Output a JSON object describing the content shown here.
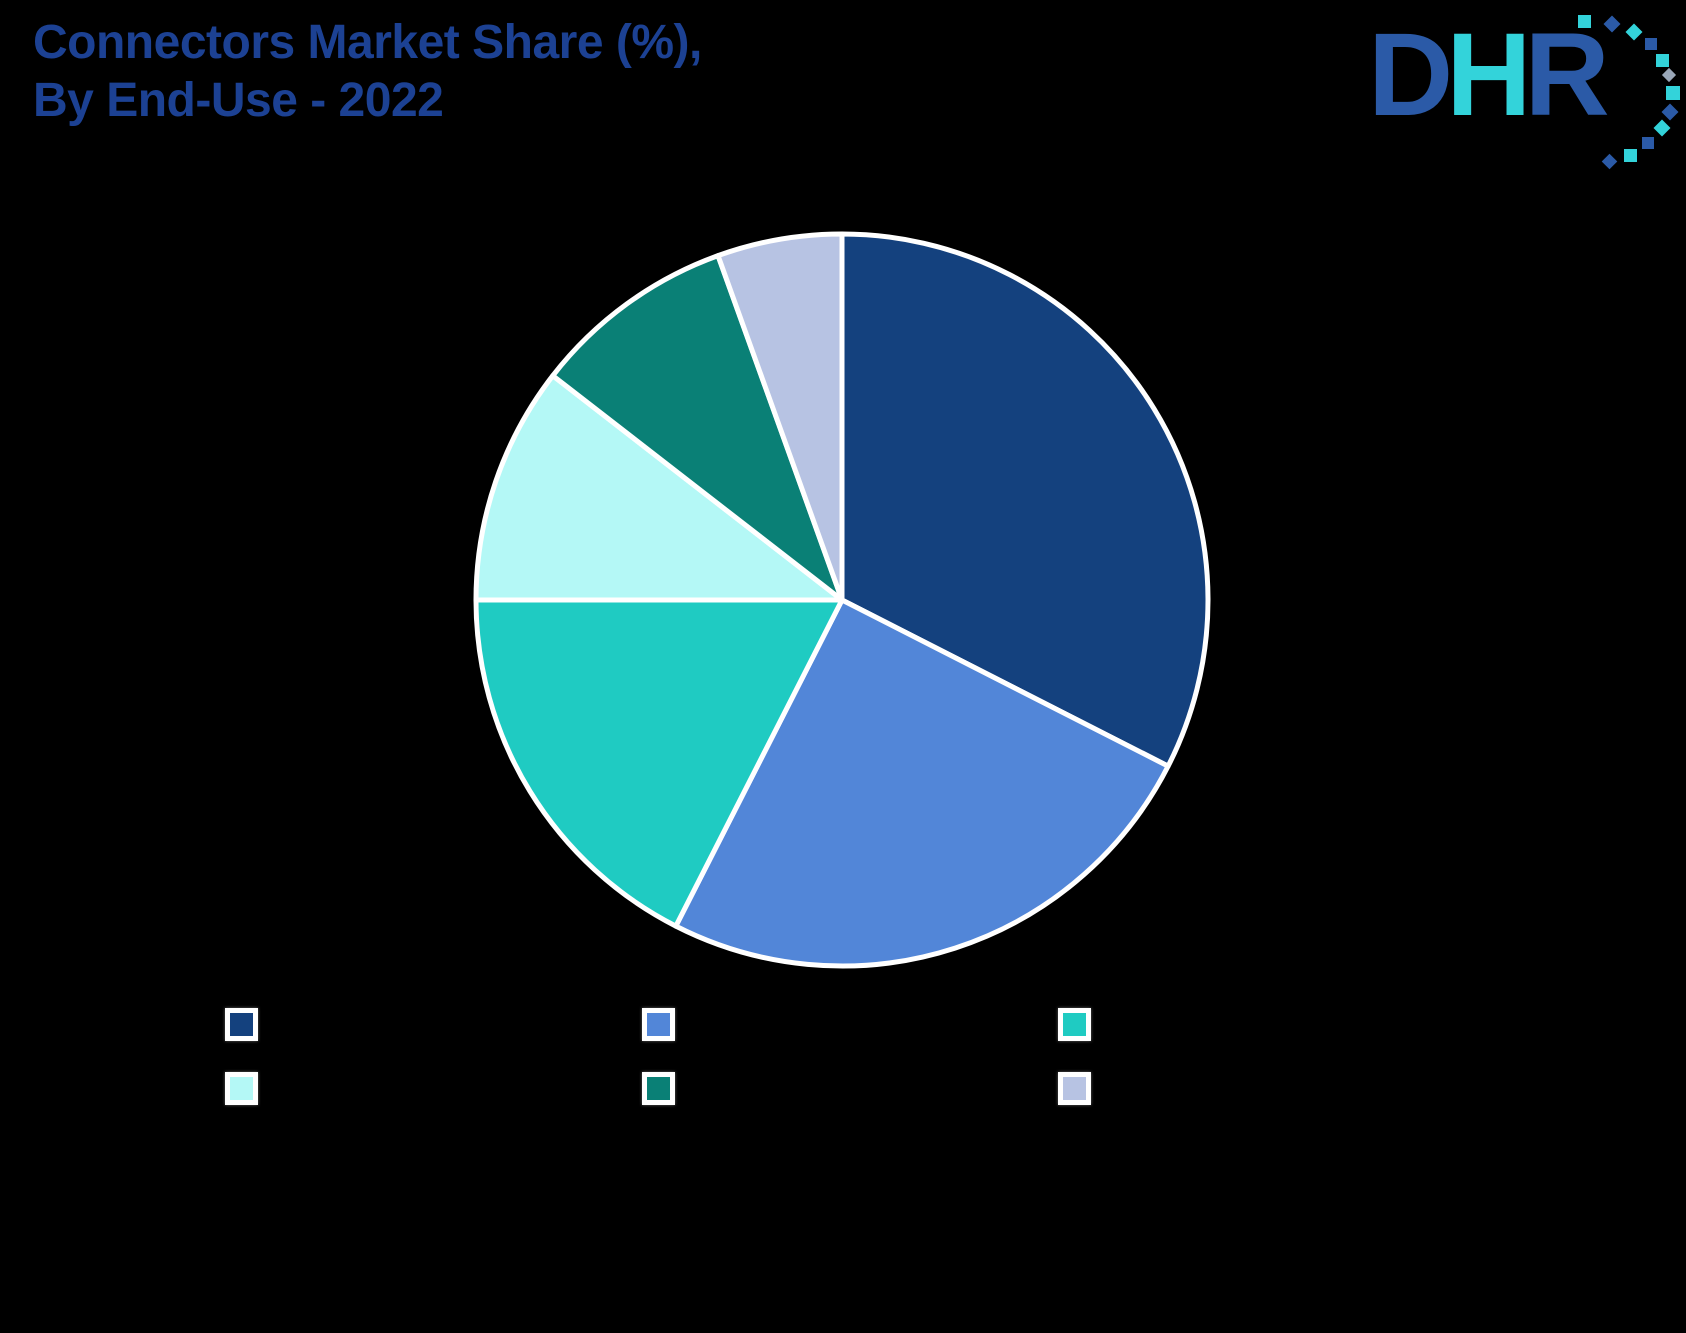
{
  "page": {
    "background_color": "#000000"
  },
  "header": {
    "title_line1": "Connectors Market Share (%),",
    "title_line2": "By End-Use - 2022",
    "title_color": "#1C4193"
  },
  "logo": {
    "name": "DHR",
    "letters": [
      {
        "char": "D",
        "color": "#2B5AA7"
      },
      {
        "char": "H",
        "color": "#33D3DA"
      },
      {
        "char": "R",
        "color": "#2B5AA7"
      }
    ],
    "accent_teal": "#33D3DA",
    "accent_blue": "#2B5AA7"
  },
  "chart_data": {
    "type": "pie",
    "title": "Connectors Market Share (%), By End-Use - 2022",
    "unit": "%",
    "values": [
      32.5,
      25,
      17.5,
      10.5,
      9,
      5.5
    ],
    "labels": [
      "",
      "",
      "",
      "",
      "",
      ""
    ],
    "colors": [
      "#14417E",
      "#5286D8",
      "#1FCBC2",
      "#B4F8F6",
      "#0A8076",
      "#B7C3E3"
    ],
    "start_angle_deg": 0,
    "direction": "clockwise",
    "separator_color": "#FFFFFF",
    "separator_width": 5,
    "legend_position": "bottom",
    "legend_labels_visible": false
  },
  "legend": {
    "items": [
      {
        "label": "",
        "color": "#14417E"
      },
      {
        "label": "",
        "color": "#5286D8"
      },
      {
        "label": "",
        "color": "#1FCBC2"
      },
      {
        "label": "",
        "color": "#B4F8F6"
      },
      {
        "label": "",
        "color": "#0A8076"
      },
      {
        "label": "",
        "color": "#B7C3E3"
      }
    ]
  }
}
